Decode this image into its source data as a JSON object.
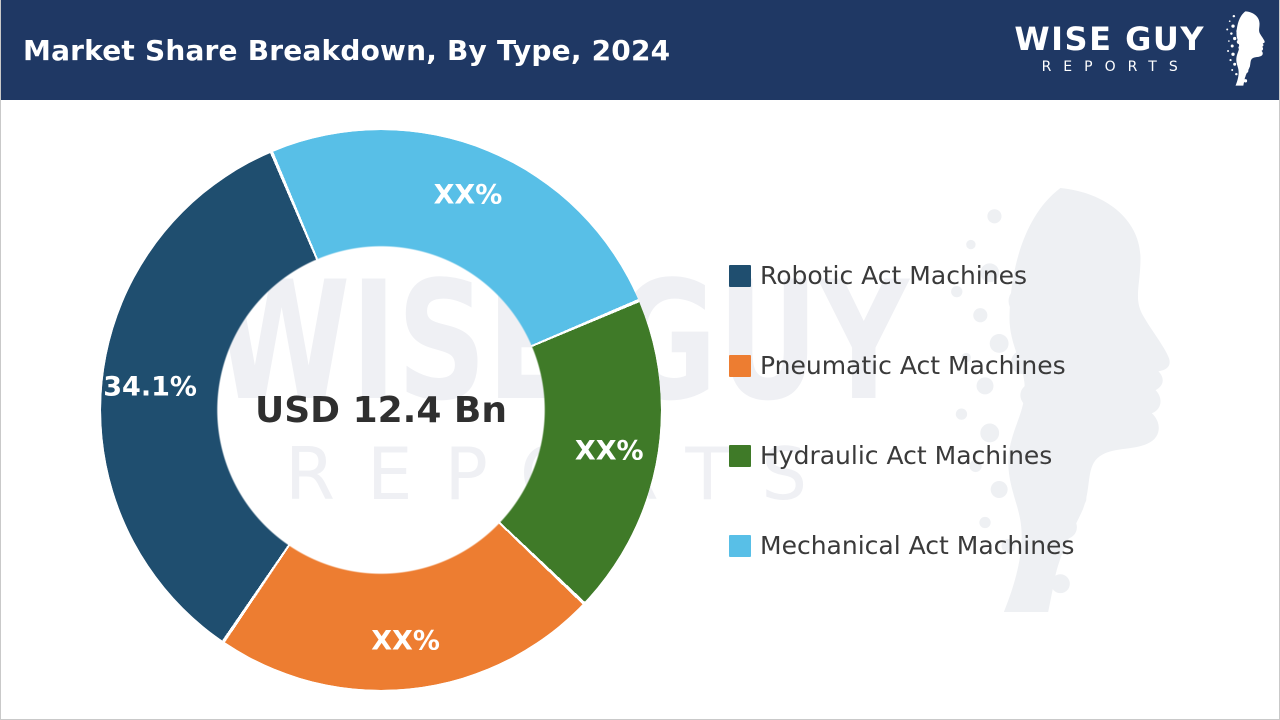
{
  "header": {
    "title": "Market Share Breakdown, By Type, 2024",
    "logo": {
      "line1": "WISE GUY",
      "line2": "REPORTS"
    }
  },
  "watermark": {
    "line1": "WISE GUY",
    "line2": "REPORTS"
  },
  "chart": {
    "center_label": "USD 12.4 Bn"
  },
  "legend": {
    "items": [
      {
        "label": "Robotic Act Machines",
        "color": "#1f4e6f"
      },
      {
        "label": "Pneumatic Act Machines",
        "color": "#ed7d31"
      },
      {
        "label": "Hydraulic Act Machines",
        "color": "#3f7a28"
      },
      {
        "label": "Mechanical Act Machines",
        "color": "#58bfe7"
      }
    ]
  },
  "chart_data": {
    "type": "pie",
    "subtype": "donut",
    "title": "Market Share Breakdown, By Type, 2024",
    "center_label": "USD 12.4 Bn",
    "start_angle_deg": -23,
    "direction": "clockwise",
    "legend_position": "right",
    "inner_radius_px": 165,
    "outer_radius_px": 280,
    "segments": [
      {
        "label": "Mechanical Act Machines",
        "data_label": "XX%",
        "percent_est": 25.0,
        "color": "#58bfe7"
      },
      {
        "label": "Hydraulic Act Machines",
        "data_label": "XX%",
        "percent_est": 18.5,
        "color": "#3f7a28"
      },
      {
        "label": "Pneumatic Act Machines",
        "data_label": "XX%",
        "percent_est": 22.4,
        "color": "#ed7d31"
      },
      {
        "label": "Robotic Act Machines",
        "data_label": "34.1%",
        "percent_est": 34.1,
        "color": "#1f4e6f"
      }
    ]
  }
}
